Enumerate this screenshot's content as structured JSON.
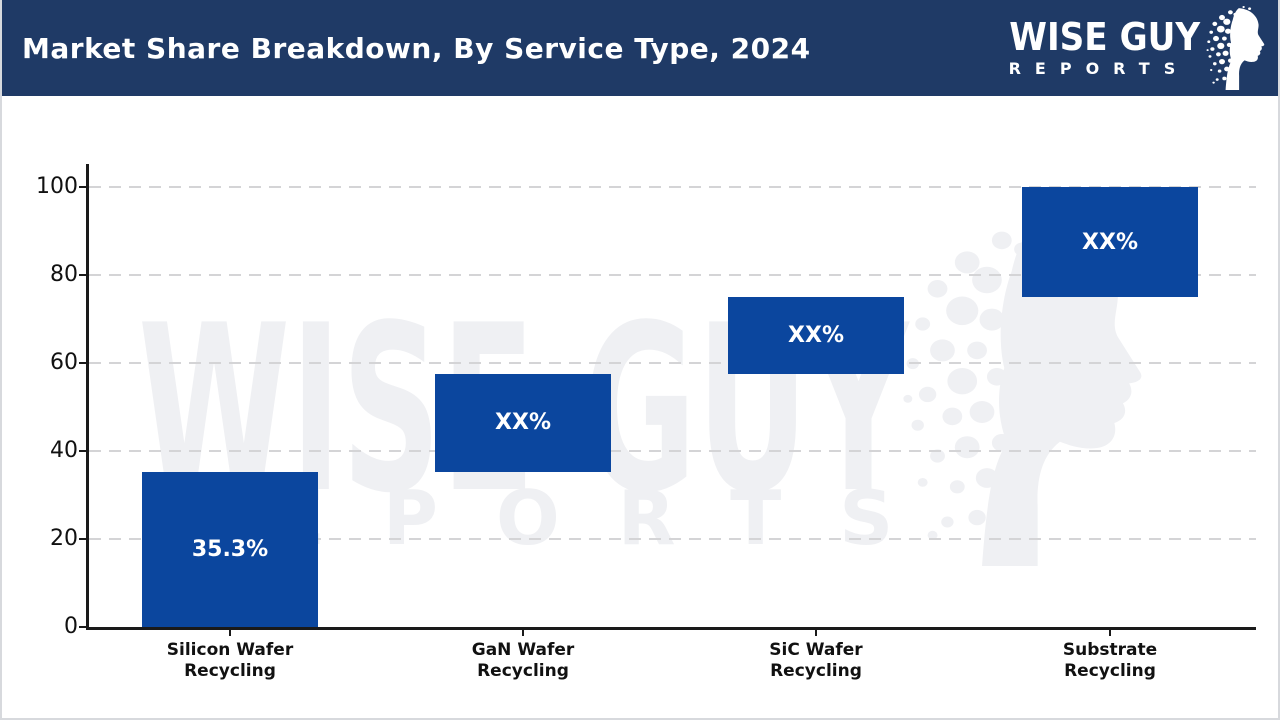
{
  "header": {
    "title": "Market Share Breakdown, By Service Type, 2024",
    "bg_color": "#1f3a66",
    "logo": {
      "word1": "WISE GUY",
      "word2": "REPORTS"
    }
  },
  "watermark": {
    "word1": "WISE GUY",
    "word2": "REPORTS"
  },
  "chart_data": {
    "type": "bar",
    "subtype": "waterfall",
    "title": "Market Share Breakdown, By Service Type, 2024",
    "categories": [
      "Silicon Wafer Recycling",
      "GaN Wafer Recycling",
      "SiC Wafer Recycling",
      "Substrate Recycling"
    ],
    "category_lines": [
      [
        "Silicon Wafer",
        "Recycling"
      ],
      [
        "GaN Wafer",
        "Recycling"
      ],
      [
        "SiC Wafer",
        "Recycling"
      ],
      [
        "Substrate",
        "Recycling"
      ]
    ],
    "segments": [
      {
        "category": "Silicon Wafer Recycling",
        "start": 0,
        "end": 35.3,
        "label": "35.3%"
      },
      {
        "category": "GaN Wafer Recycling",
        "start": 35.3,
        "end": 57.5,
        "label": "XX%"
      },
      {
        "category": "SiC Wafer Recycling",
        "start": 57.5,
        "end": 75,
        "label": "XX%"
      },
      {
        "category": "Substrate Recycling",
        "start": 75,
        "end": 100,
        "label": "XX%"
      }
    ],
    "y_ticks": [
      0,
      20,
      40,
      60,
      80,
      100
    ],
    "ylim": [
      0,
      105
    ],
    "bar_color": "#0b469e",
    "bar_label_color": "#ffffff",
    "grid": {
      "axis": "y",
      "style": "dashed",
      "color": "#d4d4d6"
    },
    "xlabel": "",
    "ylabel": ""
  }
}
